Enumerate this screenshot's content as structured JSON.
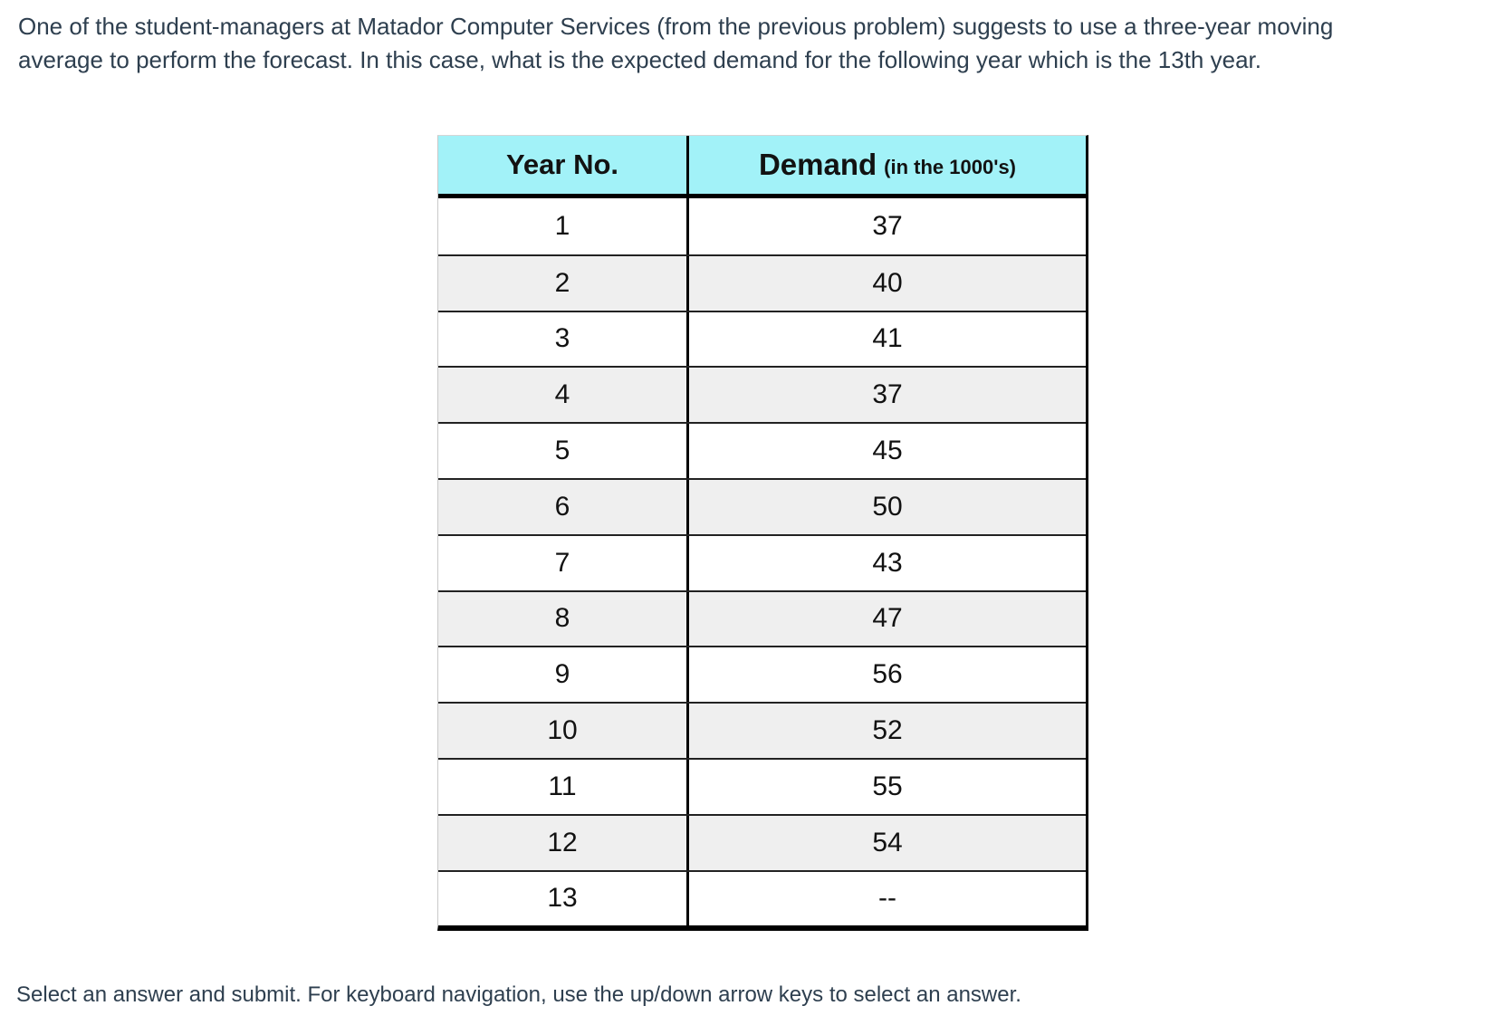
{
  "question": {
    "line1": "One of the student-managers at Matador Computer Services (from the previous problem) suggests to use a three-year moving",
    "line2": "average to perform the forecast. In this case, what is the expected demand for the following year which is the 13th year."
  },
  "table": {
    "headers": {
      "year": "Year No.",
      "demand": "Demand",
      "demand_unit": "(in the 1000's)"
    },
    "rows": [
      {
        "year": "1",
        "demand": "37"
      },
      {
        "year": "2",
        "demand": "40"
      },
      {
        "year": "3",
        "demand": "41"
      },
      {
        "year": "4",
        "demand": "37"
      },
      {
        "year": "5",
        "demand": "45"
      },
      {
        "year": "6",
        "demand": "50"
      },
      {
        "year": "7",
        "demand": "43"
      },
      {
        "year": "8",
        "demand": "47"
      },
      {
        "year": "9",
        "demand": "56"
      },
      {
        "year": "10",
        "demand": "52"
      },
      {
        "year": "11",
        "demand": "55"
      },
      {
        "year": "12",
        "demand": "54"
      },
      {
        "year": "13",
        "demand": "--"
      }
    ]
  },
  "footer": {
    "instructions": "Select an answer and submit. For keyboard navigation, use the up/down arrow keys to select an answer."
  },
  "colors": {
    "header_bg": "#a2f2f8",
    "alt_row_bg": "#efefef",
    "body_text": "#2e3f4f",
    "table_text": "#121212",
    "table_border": "#000000"
  }
}
